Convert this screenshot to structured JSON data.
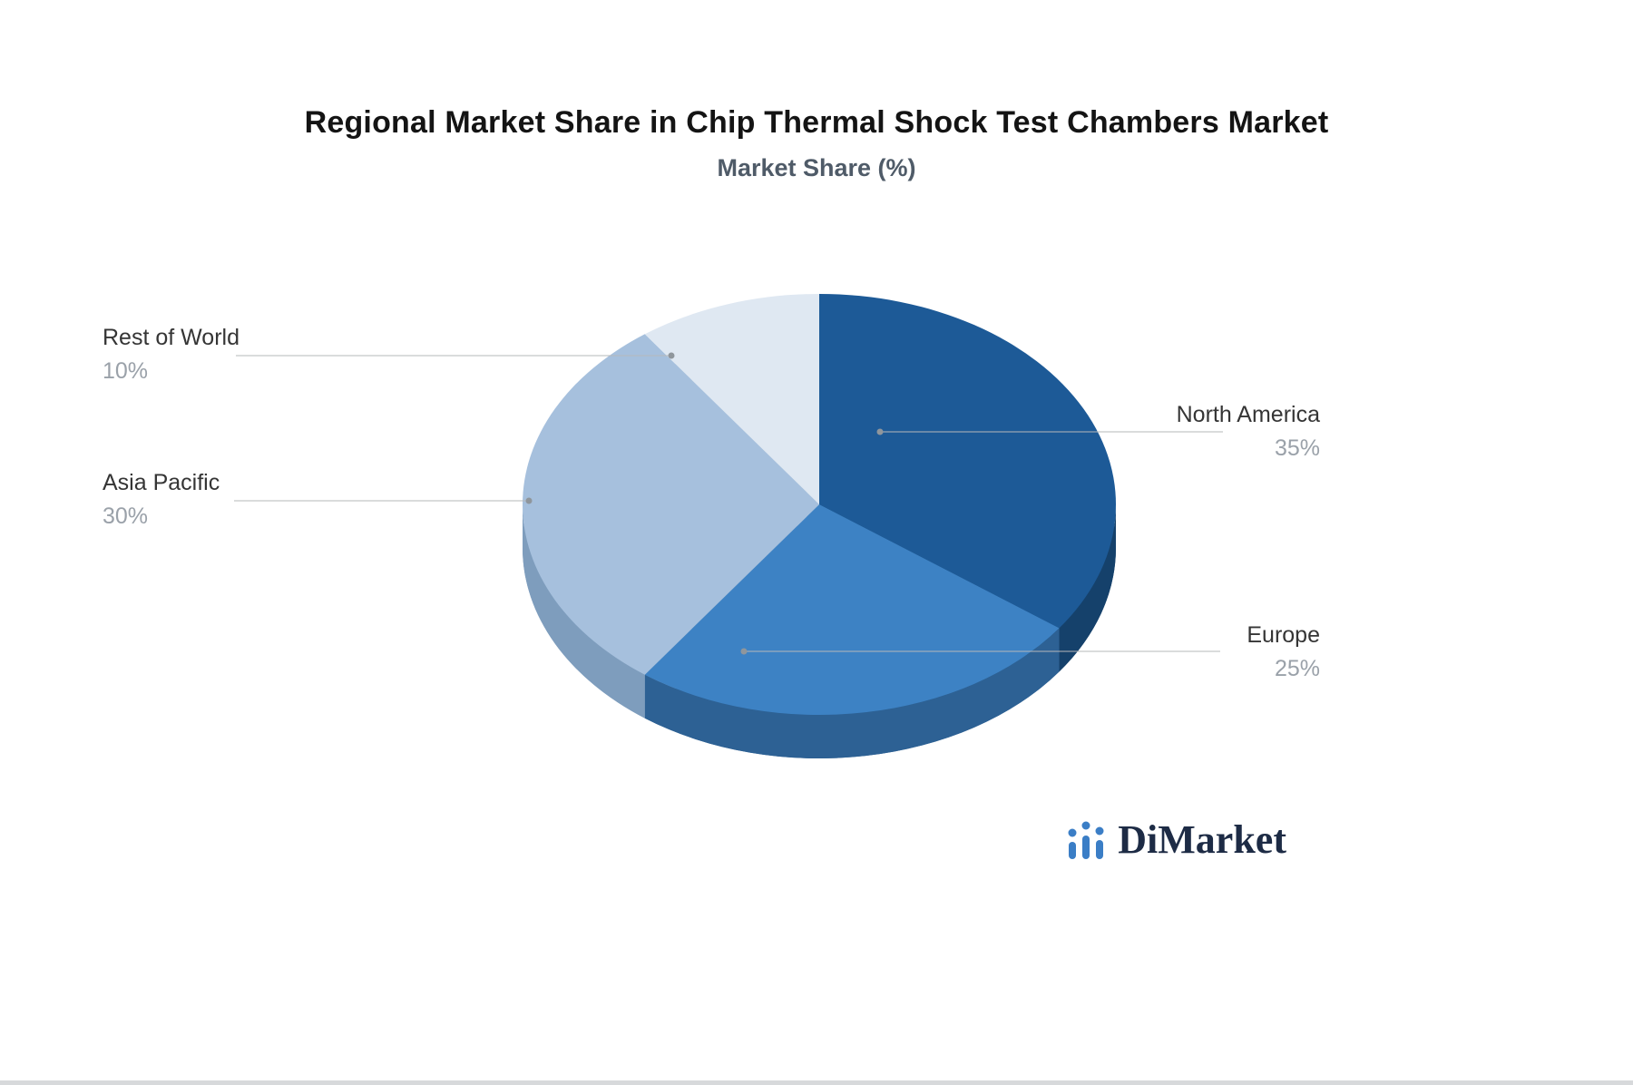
{
  "brand": {
    "name": "DiMarket",
    "text_color": "#1d2b45",
    "icon": "bar-chart-dots-icon",
    "icon_color": "#3b7ec6"
  },
  "chart_data": {
    "type": "pie",
    "style": "3d-pie",
    "title": "Regional Market Share in Chip Thermal Shock Test Chambers Market",
    "subtitle": "Market Share (%)",
    "unit": "%",
    "categories": [
      "North America",
      "Europe",
      "Asia Pacific",
      "Rest of World"
    ],
    "values": [
      35,
      25,
      30,
      10
    ],
    "value_labels": [
      "35%",
      "25%",
      "30%",
      "10%"
    ],
    "colors": [
      "#1d5a97",
      "#3d82c4",
      "#a6c0dd",
      "#dfe8f2"
    ],
    "side_colors": [
      "#15416b",
      "#2d6194",
      "#7e9dbd",
      "#bac9da"
    ],
    "start_angle_deg": 0,
    "direction": "clockwise",
    "legend": "none",
    "label_style": "external-callouts"
  }
}
